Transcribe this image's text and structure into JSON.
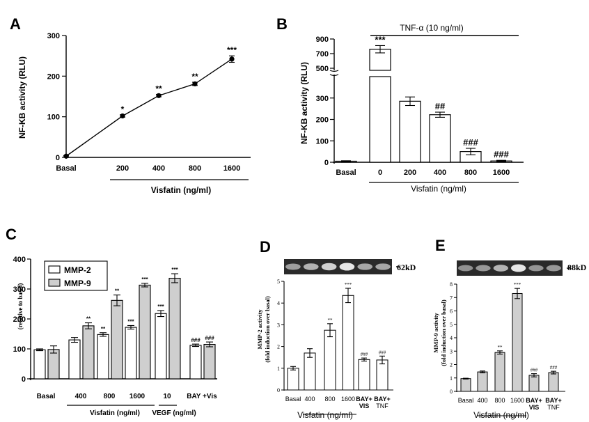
{
  "panel_labels": {
    "a": "A",
    "b": "B",
    "c": "C",
    "d": "D",
    "e": "E"
  },
  "colors": {
    "ink": "#000000",
    "bar_open": "#ffffff",
    "bar_gray": "#cfcfcf",
    "gel_bg": "#2a2a2a",
    "gel_band": "#e6e6e6"
  },
  "chart_data": [
    {
      "id": "A",
      "type": "line",
      "title": "",
      "ylabel": "NF-KB activity (RLU)",
      "xlabel": "Visfatin (ng/ml)",
      "ylim": [
        0,
        300
      ],
      "yticks": [
        0,
        100,
        200,
        300
      ],
      "categories": [
        "Basal",
        "200",
        "400",
        "800",
        "1600"
      ],
      "values": [
        3,
        102,
        152,
        181,
        242
      ],
      "errors": [
        1.5,
        3,
        3,
        4,
        8
      ],
      "significance": [
        "",
        "*",
        "**",
        "**",
        "***"
      ]
    },
    {
      "id": "B",
      "type": "bar",
      "title": "TNF-α (10 ng/ml)",
      "ylabel": "NF-KB activity (RLU)",
      "xlabel": "Visfatin (ng/ml)",
      "ylim": [
        0,
        900
      ],
      "axis_break": [
        400,
        500
      ],
      "yticks_lower": [
        0,
        100,
        200,
        300
      ],
      "yticks_upper": [
        500,
        700,
        900
      ],
      "categories": [
        "Basal",
        "0",
        "200",
        "400",
        "800",
        "1600"
      ],
      "values": [
        5,
        760,
        285,
        222,
        50,
        6
      ],
      "errors": [
        2,
        50,
        20,
        12,
        15,
        3
      ],
      "significance": [
        "",
        "***",
        "",
        "##",
        "###",
        "###"
      ]
    },
    {
      "id": "C",
      "type": "bar",
      "title": "",
      "ylabel": "(relative to basal)",
      "xlabel": "Visfatin (ng/ml)",
      "xlabel_secondary": "VEGF (ng/ml)",
      "ylim": [
        0,
        400
      ],
      "yticks": [
        0,
        100,
        200,
        300,
        400
      ],
      "groups": [
        "Basal",
        "400",
        "800",
        "1600",
        "10",
        "BAY +Vis"
      ],
      "series": [
        {
          "name": "MMP-2",
          "values": [
            97,
            130,
            148,
            172,
            218,
            112
          ],
          "errors": [
            3,
            8,
            6,
            6,
            10,
            4
          ],
          "significance": [
            "",
            "",
            "**",
            "***",
            "***",
            "###"
          ]
        },
        {
          "name": "MMP-9",
          "values": [
            98,
            177,
            262,
            313,
            336,
            115
          ],
          "errors": [
            12,
            10,
            18,
            6,
            15,
            8
          ],
          "significance": [
            "",
            "**",
            "**",
            "***",
            "***",
            "###"
          ]
        }
      ]
    },
    {
      "id": "D",
      "type": "bar",
      "gel_label": "62kD",
      "ylabel_line1": "MMP-2 activity",
      "ylabel_line2": "(fold induction over basal)",
      "xlabel": "Visfatin (ng/ml)",
      "ylim": [
        0,
        5
      ],
      "yticks": [
        0,
        1,
        2,
        3,
        4,
        5
      ],
      "categories": [
        "Basal",
        "400",
        "800",
        "1600",
        "BAY+ VIS",
        "BAY+ TNF"
      ],
      "values": [
        1.0,
        1.7,
        2.75,
        4.35,
        1.4,
        1.38
      ],
      "errors": [
        0.08,
        0.2,
        0.3,
        0.33,
        0.07,
        0.18
      ],
      "significance": [
        "",
        "",
        "**",
        "***",
        "###",
        "###"
      ]
    },
    {
      "id": "E",
      "type": "bar",
      "gel_label": "88kD",
      "ylabel_line1": "MMP-9 activity",
      "ylabel_line2": "(fold induction over basal)",
      "xlabel": "Visfatin (ng/ml)",
      "ylim": [
        0,
        8
      ],
      "yticks": [
        0,
        1,
        2,
        3,
        4,
        5,
        6,
        7,
        8
      ],
      "categories": [
        "Basal",
        "400",
        "800",
        "1600",
        "BAY+ VIS",
        "BAY+ TNF"
      ],
      "values": [
        0.95,
        1.45,
        2.9,
        7.3,
        1.2,
        1.4
      ],
      "errors": [
        0.03,
        0.07,
        0.12,
        0.38,
        0.12,
        0.1
      ],
      "significance": [
        "",
        "",
        "**",
        "***",
        "###",
        "###"
      ]
    }
  ]
}
